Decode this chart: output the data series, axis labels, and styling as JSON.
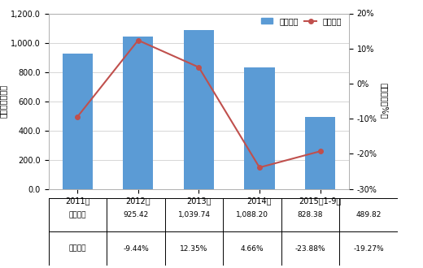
{
  "categories": [
    "2011年",
    "2012年",
    "2013年",
    "2014年",
    "2015年1-9月"
  ],
  "import_values": [
    925.42,
    1039.74,
    1088.2,
    828.38,
    489.82
  ],
  "growth_rates": [
    -9.44,
    12.35,
    4.66,
    -23.88,
    -19.27
  ],
  "bar_color": "#5b9bd5",
  "line_color": "#c0504d",
  "marker_color": "#c0504d",
  "left_ylabel": "进口数量（吨）",
  "right_ylabel": "同比增长（%）",
  "ylim_left": [
    0,
    1200
  ],
  "ylim_right": [
    -30,
    20
  ],
  "left_yticks": [
    0,
    200,
    400,
    600,
    800,
    1000,
    1200
  ],
  "right_yticks": [
    -30,
    -20,
    -10,
    0,
    10,
    20
  ],
  "legend_bar": "进口数量",
  "legend_line": "同比增长",
  "table_row1_label": "进口数量",
  "table_row2_label": "同比增长",
  "table_row1_values": [
    "925.42",
    "1,039.74",
    "1,088.20",
    "828.38",
    "489.82"
  ],
  "table_row2_values": [
    "-9.44%",
    "12.35%",
    "4.66%",
    "-23.88%",
    "-19.27%"
  ],
  "background_color": "#ffffff",
  "grid_color": "#d0d0d0",
  "tick_fontsize": 7,
  "label_fontsize": 7,
  "legend_fontsize": 7
}
